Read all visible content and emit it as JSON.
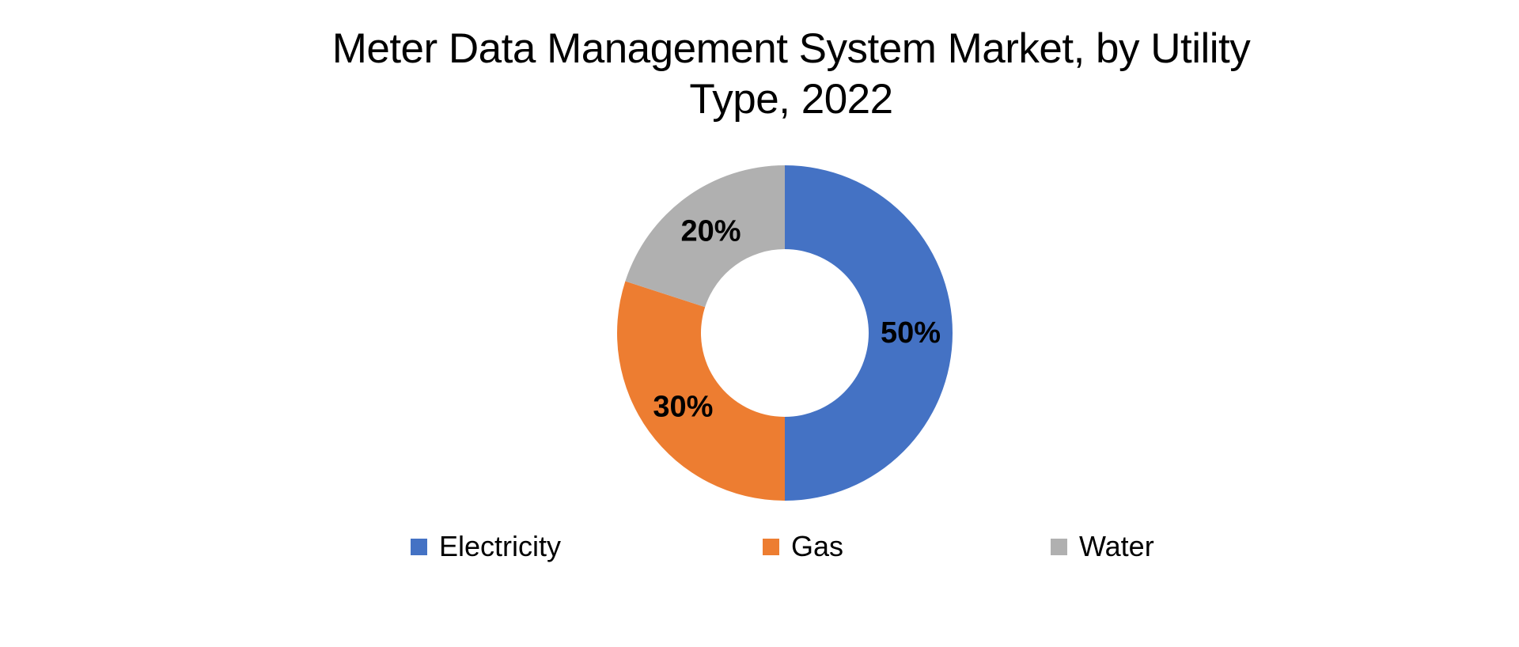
{
  "page": {
    "background": "#FFFFFF",
    "title_lines": [
      "Meter Data Management System Market, by Utility",
      "Type, 2022"
    ]
  },
  "chart_data": {
    "type": "pie",
    "subtype": "doughnut",
    "title": "Meter Data Management System Market, by Utility Type, 2022",
    "categories": [
      "Electricity",
      "Gas",
      "Water"
    ],
    "values": [
      50,
      30,
      20
    ],
    "unit": "%",
    "data_labels": [
      "50%",
      "30%",
      "20%"
    ],
    "colors": [
      "#4472C4",
      "#ED7D31",
      "#B0B0B0"
    ],
    "label_color": "#000000",
    "start_angle_deg": 0,
    "direction": "clockwise",
    "hole_ratio": 0.5,
    "legend": {
      "position": "bottom",
      "entries": [
        "Electricity",
        "Gas",
        "Water"
      ]
    }
  }
}
